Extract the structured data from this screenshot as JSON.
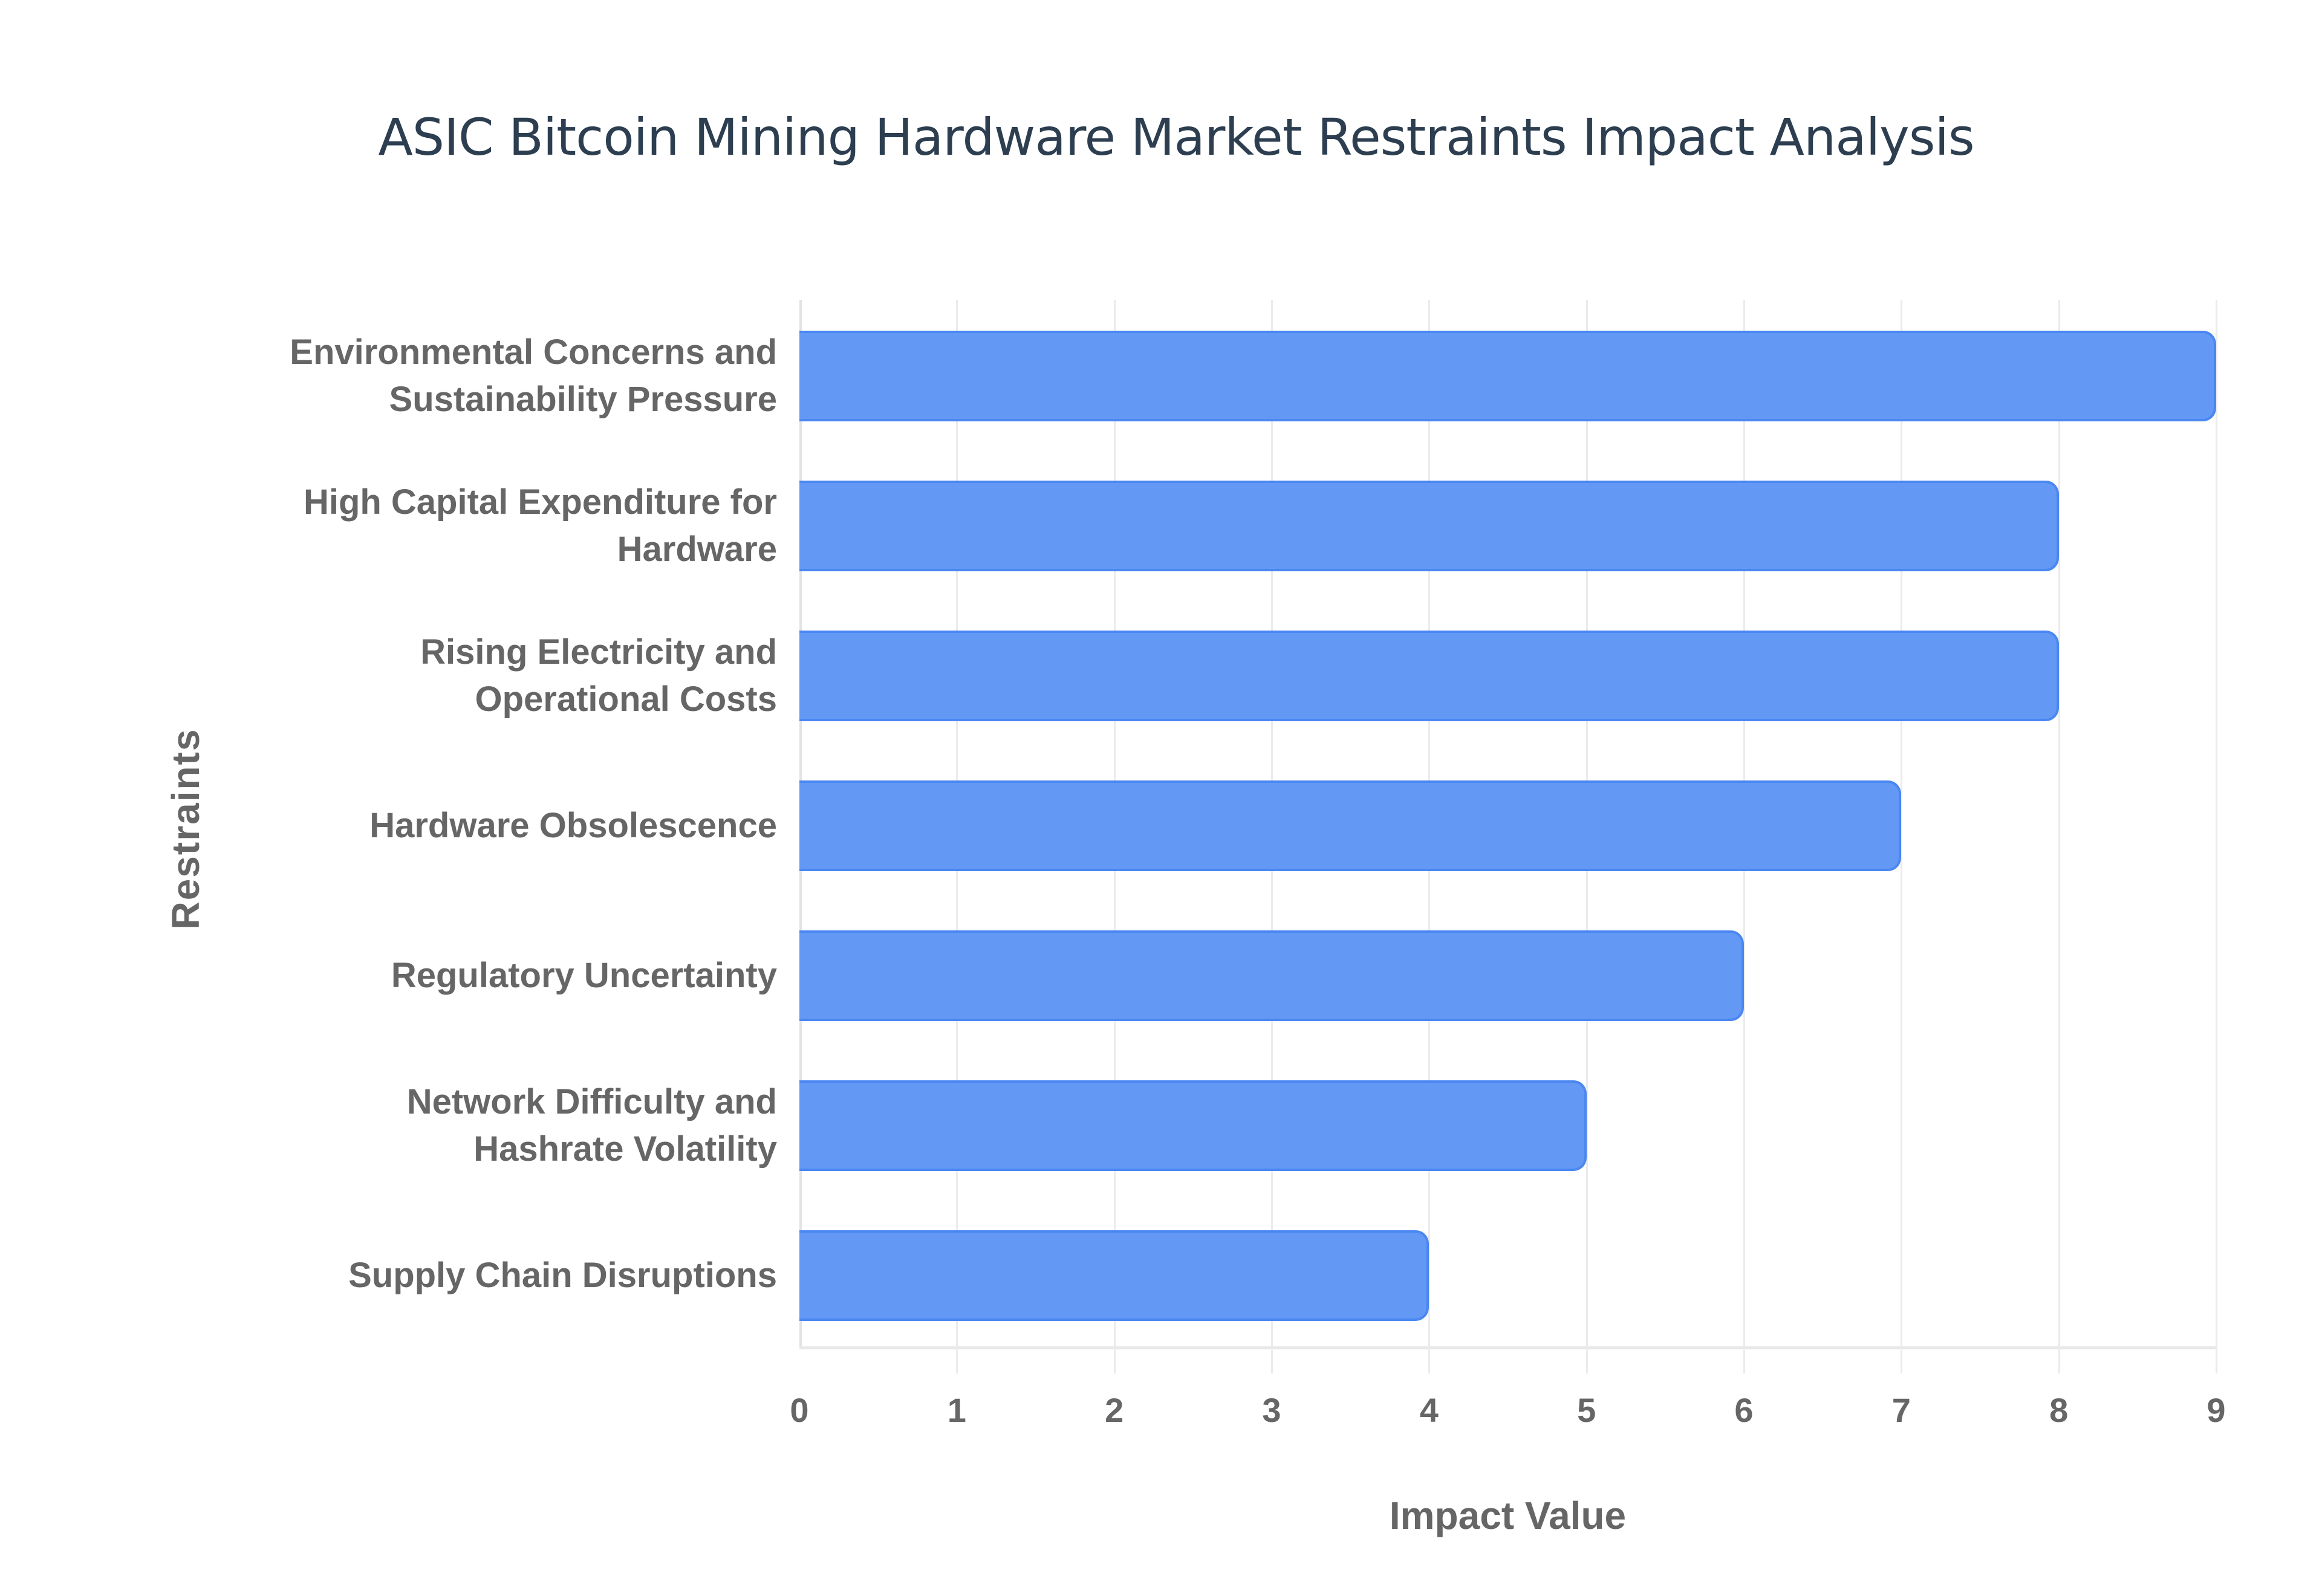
{
  "chart_data": {
    "type": "bar",
    "orientation": "horizontal",
    "title": "ASIC Bitcoin Mining Hardware Market Restraints Impact Analysis",
    "xlabel": "Impact Value",
    "ylabel": "Restraints",
    "xlim": [
      0,
      9
    ],
    "x_ticks": [
      "0",
      "1",
      "2",
      "3",
      "4",
      "5",
      "6",
      "7",
      "8",
      "9"
    ],
    "grid": true,
    "legend": null,
    "bar_color": "#6399f5",
    "bar_border_color": "#4b87f1",
    "categories": [
      "Environmental Concerns and Sustainability Pressure",
      "High Capital Expenditure for Hardware",
      "Rising Electricity and Operational Costs",
      "Hardware Obsolescence",
      "Regulatory Uncertainty",
      "Network Difficulty and Hashrate Volatility",
      "Supply Chain Disruptions"
    ],
    "values": [
      9,
      8,
      8,
      7,
      6,
      5,
      4
    ]
  },
  "labels": {
    "l0": [
      "Environmental Concerns and",
      "Sustainability Pressure"
    ],
    "l1": [
      "High Capital Expenditure for",
      "Hardware"
    ],
    "l2": [
      "Rising Electricity and",
      "Operational Costs"
    ],
    "l3": [
      "Hardware Obsolescence"
    ],
    "l4": [
      "Regulatory Uncertainty"
    ],
    "l5": [
      "Network Difficulty and",
      "Hashrate Volatility"
    ],
    "l6": [
      "Supply Chain Disruptions"
    ]
  }
}
